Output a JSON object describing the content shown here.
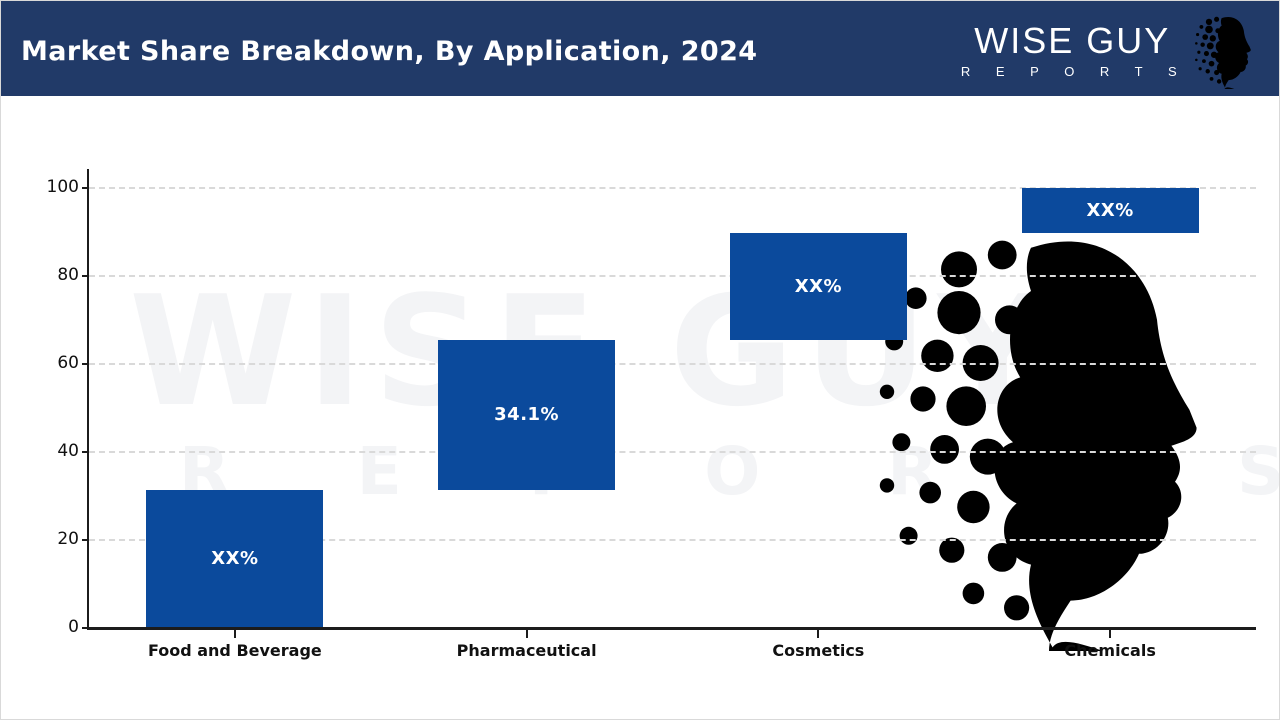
{
  "header": {
    "title": "Market Share Breakdown, By Application, 2024",
    "bg_color": "#213a68",
    "logo": {
      "line1": "WISE GUY",
      "line2": "R E P O R T S"
    }
  },
  "watermark": {
    "line1": "WISE GUY",
    "line2": "R E P O R T S"
  },
  "chart_data": {
    "type": "bar",
    "subtype": "waterfall",
    "title": "Market Share Breakdown, By Application, 2024",
    "xlabel": "",
    "ylabel": "",
    "categories": [
      "Food and Beverage",
      "Pharmaceutical",
      "Cosmetics",
      "Chemicals"
    ],
    "segments": [
      {
        "category": "Food and Beverage",
        "start": 0,
        "end": 31.4,
        "label": "XX%"
      },
      {
        "category": "Pharmaceutical",
        "start": 31.4,
        "end": 65.5,
        "label": "34.1%"
      },
      {
        "category": "Cosmetics",
        "start": 65.5,
        "end": 89.8,
        "label": "XX%"
      },
      {
        "category": "Chemicals",
        "start": 89.8,
        "end": 100,
        "label": "XX%"
      }
    ],
    "y_ticks": [
      0,
      20,
      40,
      60,
      80,
      100
    ],
    "ylim": [
      0,
      104
    ],
    "grid": "horizontal-dashed",
    "legend": "none",
    "bar_color": "#0b4a9c",
    "label_color": "#ffffff"
  }
}
